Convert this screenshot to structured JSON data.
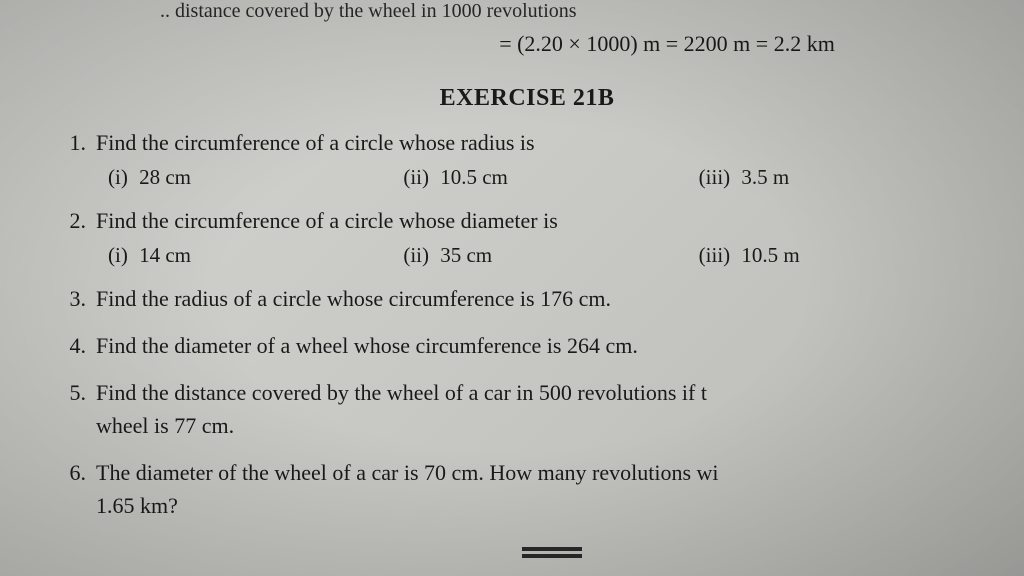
{
  "top_partial": ".. distance covered by the wheel in 1000 revolutions",
  "equation": "= (2.20 × 1000) m = 2200 m = 2.2 km",
  "exercise_title": "EXERCISE 21B",
  "questions": {
    "q1": {
      "num": "1.",
      "text": "Find the circumference of a circle whose radius is",
      "opts": {
        "a": {
          "label": "(i)",
          "val": "28 cm"
        },
        "b": {
          "label": "(ii)",
          "val": "10.5 cm"
        },
        "c": {
          "label": "(iii)",
          "val": "3.5 m"
        }
      }
    },
    "q2": {
      "num": "2.",
      "text": "Find the circumference of a circle whose diameter is",
      "opts": {
        "a": {
          "label": "(i)",
          "val": "14 cm"
        },
        "b": {
          "label": "(ii)",
          "val": "35 cm"
        },
        "c": {
          "label": "(iii)",
          "val": "10.5 m"
        }
      }
    },
    "q3": {
      "num": "3.",
      "text": "Find the radius of a circle whose circumference is 176 cm."
    },
    "q4": {
      "num": "4.",
      "text": "Find the diameter of a wheel whose circumference is 264 cm."
    },
    "q5": {
      "num": "5.",
      "text": "Find the distance covered by the wheel of a car in 500 revolutions if t",
      "cont": "wheel is 77 cm."
    },
    "q6": {
      "num": "6.",
      "text": "The diameter of the wheel of a car is 70 cm. How many revolutions wi",
      "cont": "1.65 km?"
    }
  }
}
